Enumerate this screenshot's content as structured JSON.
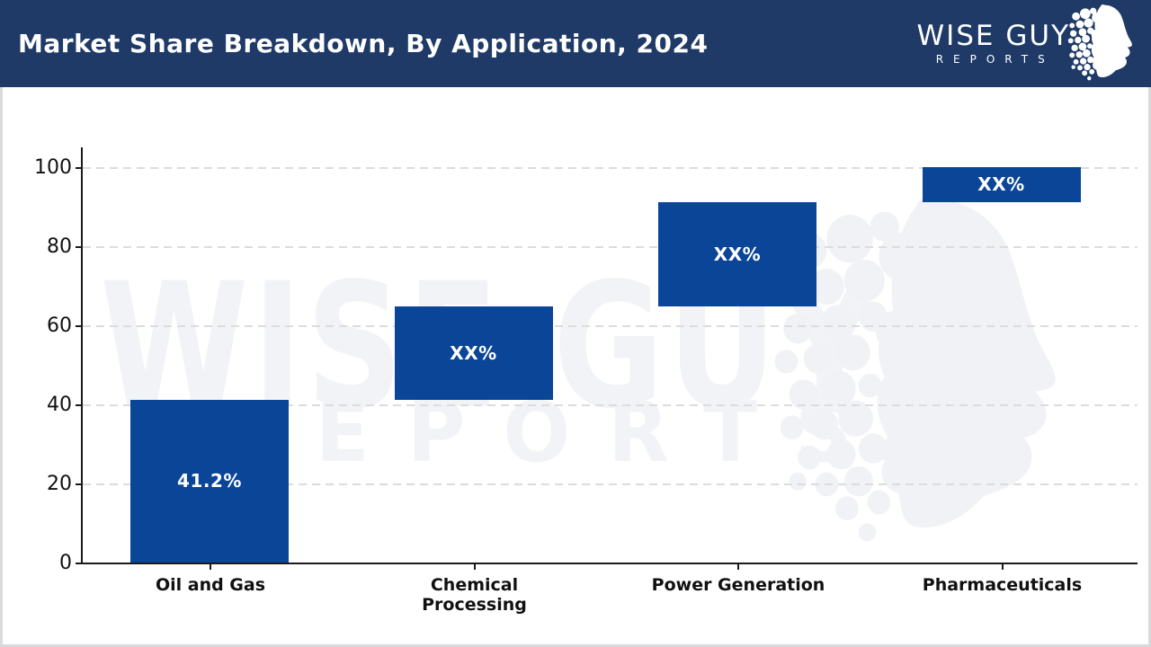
{
  "header": {
    "title": "Market Share Breakdown, By Application, 2024",
    "bg_color": "#1f3a67",
    "logo": {
      "line1": "WISE GUY",
      "line2": "REPORTS"
    }
  },
  "watermark": {
    "line1": "WISE GUY",
    "line2": "REPORTS"
  },
  "chart_data": {
    "type": "bar",
    "subtype": "floating-waterfall",
    "title": "Market Share Breakdown, By Application, 2024",
    "categories": [
      "Oil and Gas",
      "Chemical Processing",
      "Power Generation",
      "Pharmaceuticals"
    ],
    "tick_labels": [
      "Oil and Gas",
      "Chemical\nProcessing",
      "Power Generation",
      "Pharmaceuticals"
    ],
    "segments": [
      {
        "category": "Oil and Gas",
        "start": 0,
        "end": 41.2,
        "label": "41.2%"
      },
      {
        "category": "Chemical Processing",
        "start": 41.2,
        "end": 64.8,
        "label": "XX%"
      },
      {
        "category": "Power Generation",
        "start": 64.8,
        "end": 91.2,
        "label": "XX%"
      },
      {
        "category": "Pharmaceuticals",
        "start": 91.2,
        "end": 100,
        "label": "XX%"
      }
    ],
    "y_ticks": [
      0,
      20,
      40,
      60,
      80,
      100
    ],
    "ylim": [
      0,
      105
    ],
    "grid": "horizontal-dashed",
    "legend": "none",
    "colors": {
      "bar": "#0b4598",
      "axis": "#1a1a1a",
      "gridline": "#dcdcdc",
      "bar_label": "#ffffff",
      "watermark": "#f2f3f6"
    }
  }
}
